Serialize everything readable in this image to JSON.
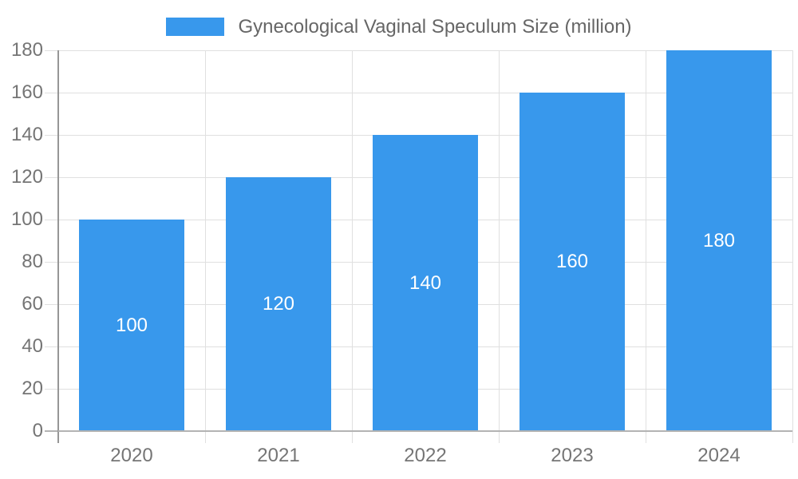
{
  "chart_data": {
    "type": "bar",
    "title": "Gynecological Vaginal Speculum Size (million)",
    "categories": [
      "2020",
      "2021",
      "2022",
      "2023",
      "2024"
    ],
    "series": [
      {
        "name": "Gynecological Vaginal Speculum Size (million)",
        "values": [
          100,
          120,
          140,
          160,
          180
        ]
      }
    ],
    "data_labels": [
      "100",
      "120",
      "140",
      "160",
      "180"
    ],
    "xlabel": "",
    "ylabel": "",
    "ylim": [
      0,
      180
    ],
    "ytick_step": 20,
    "yticks": [
      0,
      20,
      40,
      60,
      80,
      100,
      120,
      140,
      160,
      180
    ],
    "grid": true,
    "legend_position": "top"
  },
  "legend": {
    "label": "Gynecological Vaginal Speculum Size (million)"
  },
  "colors": {
    "bar": "#3898ec",
    "bar_label_text": "#ffffff",
    "grid_line": "#e0e0e0",
    "y_axis_line": "#969696",
    "x_axis_line": "#b3b3b3",
    "axis_label_text": "#757575",
    "legend_text": "#666666",
    "background": "#ffffff"
  }
}
